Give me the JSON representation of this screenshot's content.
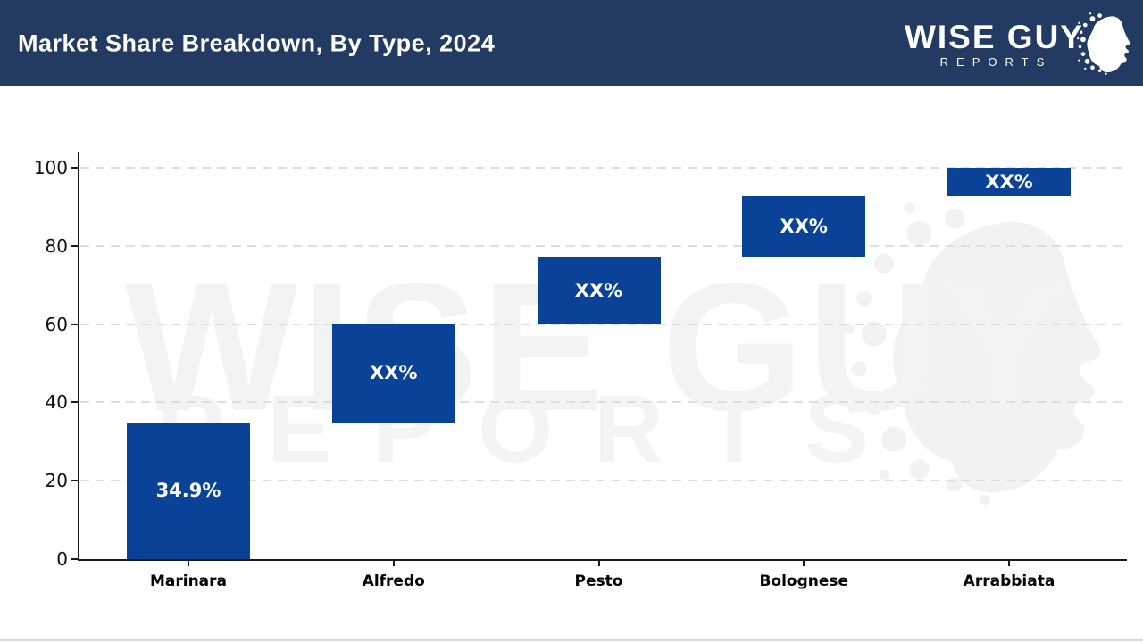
{
  "header": {
    "title": "Market Share Breakdown, By Type, 2024",
    "bg_color": "#233a63",
    "logo": {
      "line1": "WISE GUY",
      "line2": "REPORTS",
      "icon": "dot-face-profile-icon"
    }
  },
  "watermark": {
    "line1": "WISE GUY",
    "line2": "REPORTS"
  },
  "chart_data": {
    "type": "bar",
    "subtype": "waterfall",
    "title": "Market Share Breakdown, By Type, 2024",
    "categories": [
      "Marinara",
      "Alfredo",
      "Pesto",
      "Bolognese",
      "Arrabbiata"
    ],
    "segments": [
      {
        "category": "Marinara",
        "start": 0,
        "end": 34.9,
        "label": "34.9%"
      },
      {
        "category": "Alfredo",
        "start": 34.9,
        "end": 60.1,
        "label": "XX%"
      },
      {
        "category": "Pesto",
        "start": 60.1,
        "end": 77.2,
        "label": "XX%"
      },
      {
        "category": "Bolognese",
        "start": 77.2,
        "end": 92.8,
        "label": "XX%"
      },
      {
        "category": "Arrabbiata",
        "start": 92.8,
        "end": 100,
        "label": "XX%"
      }
    ],
    "yticks": [
      0,
      20,
      40,
      60,
      80,
      100
    ],
    "ylim": [
      0,
      104
    ],
    "xlabel": "",
    "ylabel": "",
    "grid": "horizontal-dashed",
    "legend": "none",
    "bar_color": "#0a4298",
    "bar_label_color": "#ffffff",
    "axis_color": "#1a1a1a",
    "grid_color": "#dedede"
  },
  "footer": {
    "rule_color": "#d8d8d8"
  }
}
